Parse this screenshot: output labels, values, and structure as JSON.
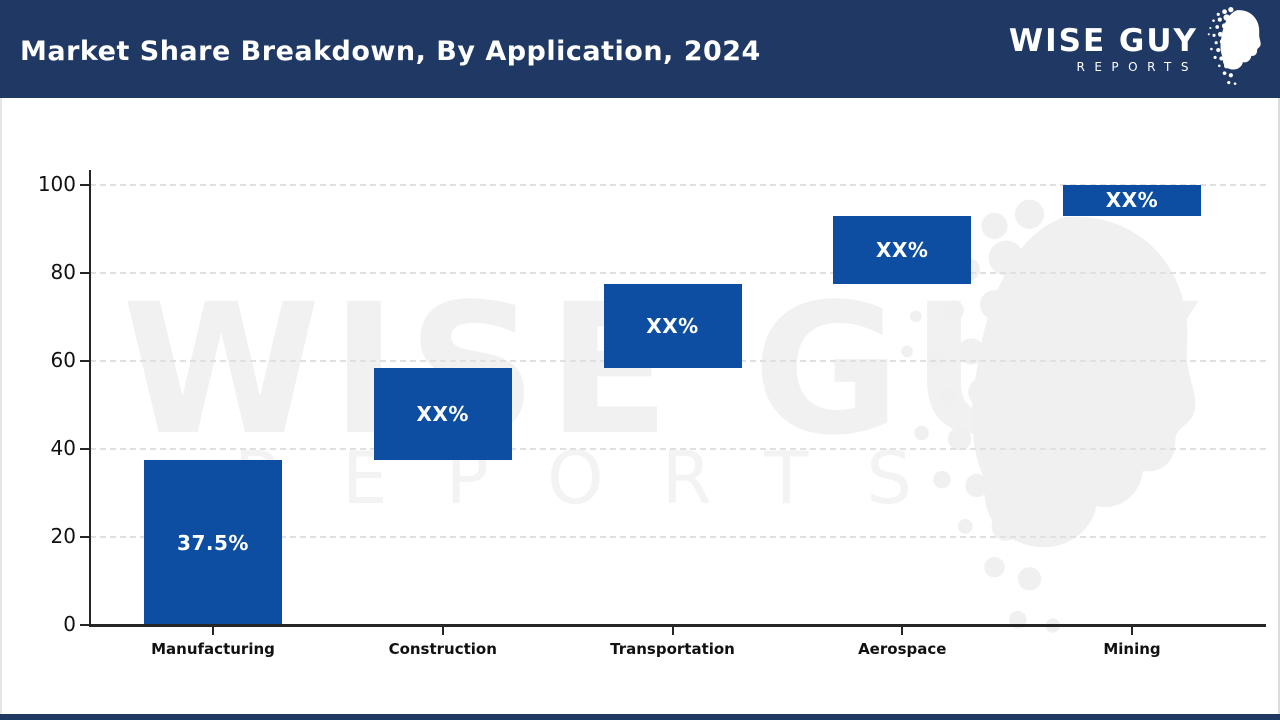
{
  "header": {
    "title": "Market Share Breakdown, By Application, 2024",
    "logo": {
      "wordmark": "WISE GUY",
      "subtext": "REPORTS"
    }
  },
  "watermark": {
    "wordmark": "WISE GUY",
    "subtext": "REPORTS"
  },
  "chart_data": {
    "type": "bar",
    "subtype": "waterfall-floating-bars",
    "title": "Market Share Breakdown, By Application, 2024",
    "categories": [
      "Manufacturing",
      "Construction",
      "Transportation",
      "Aerospace",
      "Mining"
    ],
    "segments": [
      {
        "category": "Manufacturing",
        "start": 0,
        "end": 37.5,
        "label": "37.5%"
      },
      {
        "category": "Construction",
        "start": 37.5,
        "end": 58.5,
        "label": "XX%"
      },
      {
        "category": "Transportation",
        "start": 58.5,
        "end": 77.5,
        "label": "XX%"
      },
      {
        "category": "Aerospace",
        "start": 77.5,
        "end": 93,
        "label": "XX%"
      },
      {
        "category": "Mining",
        "start": 93,
        "end": 100,
        "label": "XX%"
      }
    ],
    "xlabel": "",
    "ylabel": "",
    "ylim": [
      0,
      100
    ],
    "yticks": [
      0,
      20,
      40,
      60,
      80,
      100
    ],
    "grid": "horizontal-dashed",
    "legend": "none",
    "bar_color": "#0d4da2",
    "bar_label_color": "#ffffff"
  },
  "colors": {
    "header_bg": "#1f3864",
    "footer_bg": "#1f3864",
    "bar": "#0d4da2",
    "grid": "#e0e0e0",
    "axis": "#262626",
    "watermark": "#f1f1f1",
    "title_text": "#ffffff"
  }
}
